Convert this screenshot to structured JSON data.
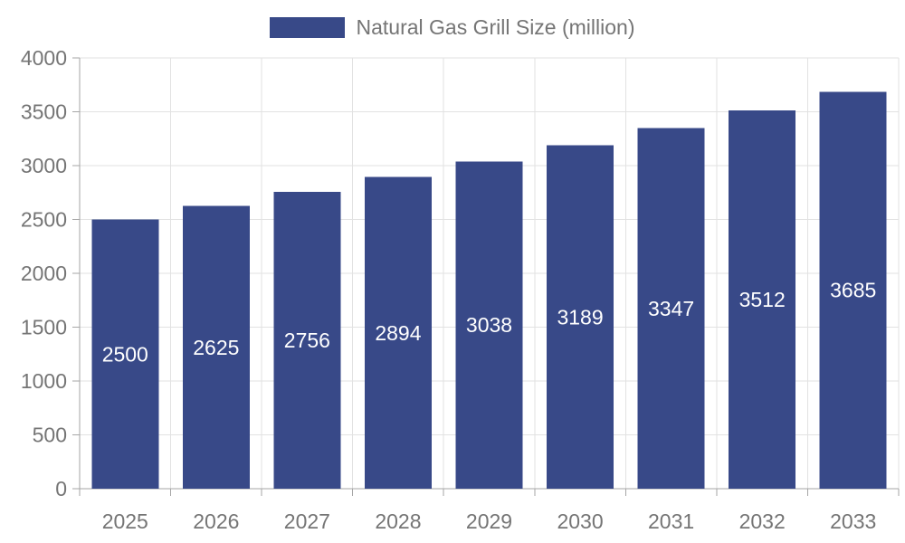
{
  "legend": {
    "label": "Natural Gas Grill Size (million)"
  },
  "chart_data": {
    "type": "bar",
    "title": "",
    "xlabel": "",
    "ylabel": "",
    "categories": [
      "2025",
      "2026",
      "2027",
      "2028",
      "2029",
      "2030",
      "2031",
      "2032",
      "2033"
    ],
    "series": [
      {
        "name": "Natural Gas Grill Size (million)",
        "values": [
          2500,
          2625,
          2756,
          2894,
          3038,
          3189,
          3347,
          3512,
          3685
        ]
      }
    ],
    "ylim": [
      0,
      4000
    ],
    "yticks": [
      0,
      500,
      1000,
      1500,
      2000,
      2500,
      3000,
      3500,
      4000
    ],
    "grid": true,
    "legend_position": "top-center",
    "bar_label_position": "inside-center",
    "colors": {
      "bar": "#384988",
      "bar_value_label": "#ffffff",
      "axis_text": "#757575",
      "grid_line": "#e2e2e2",
      "axis_line": "#a6a6a6"
    }
  }
}
